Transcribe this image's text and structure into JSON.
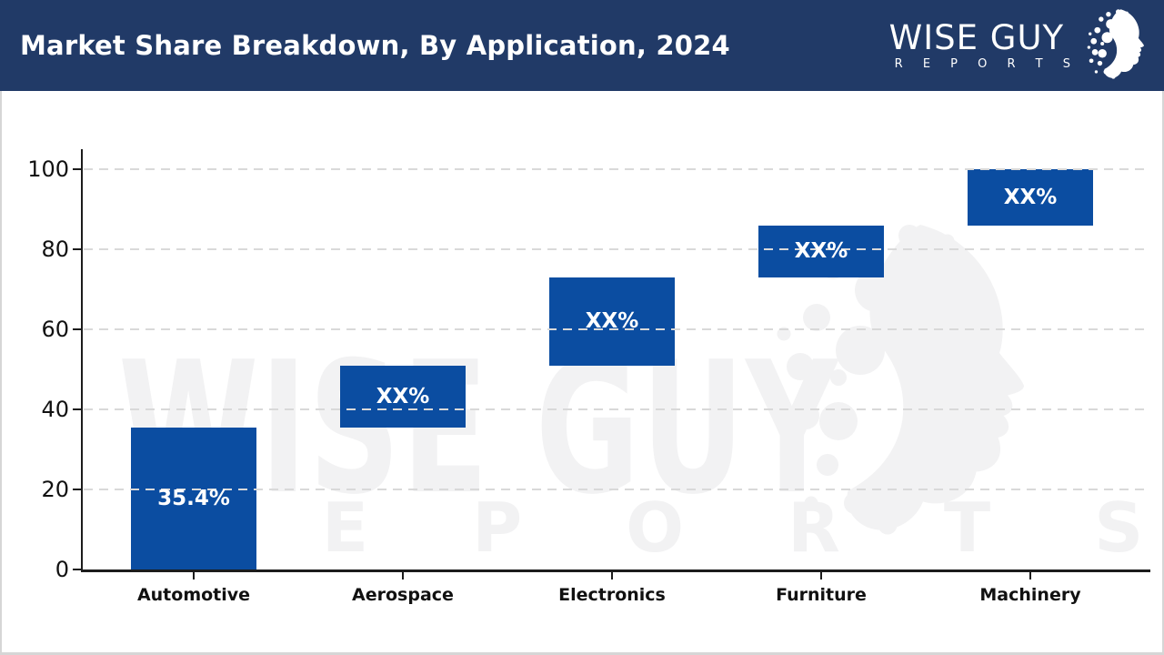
{
  "header": {
    "title": "Market Share Breakdown, By Application, 2024",
    "logo": {
      "wordmark": "WISE GUY",
      "reports": "R E P O R T S",
      "icon": "dotted-head-profile"
    }
  },
  "watermark": {
    "line1": "WISE GUY",
    "line2": "R E P O R T S",
    "icon": "dotted-head-profile"
  },
  "colors": {
    "header_bg": "#213A67",
    "bar": "#0B4DA1",
    "bar_label": "#FFFFFF",
    "grid": "#D9D9D9",
    "axis": "#1C1C1C",
    "watermark": "#F2F2F3",
    "page_border": "#D6D6D6"
  },
  "chart_data": {
    "type": "bar",
    "subtype": "waterfall",
    "title": "Market Share Breakdown, By Application, 2024",
    "categories": [
      "Automotive",
      "Aerospace",
      "Electronics",
      "Furniture",
      "Machinery"
    ],
    "bars": [
      {
        "category": "Automotive",
        "start": 0,
        "end": 35.4,
        "label": "35.4%"
      },
      {
        "category": "Aerospace",
        "start": 35.4,
        "end": 51,
        "label": "XX%"
      },
      {
        "category": "Electronics",
        "start": 51,
        "end": 73,
        "label": "XX%"
      },
      {
        "category": "Furniture",
        "start": 73,
        "end": 86,
        "label": "XX%"
      },
      {
        "category": "Machinery",
        "start": 86,
        "end": 100,
        "label": "XX%"
      }
    ],
    "yticks": [
      0,
      20,
      40,
      60,
      80,
      100
    ],
    "ylim": [
      0,
      105
    ],
    "xlabel": "",
    "ylabel": "",
    "grid": "dashed-horizontal",
    "legend": "none"
  }
}
